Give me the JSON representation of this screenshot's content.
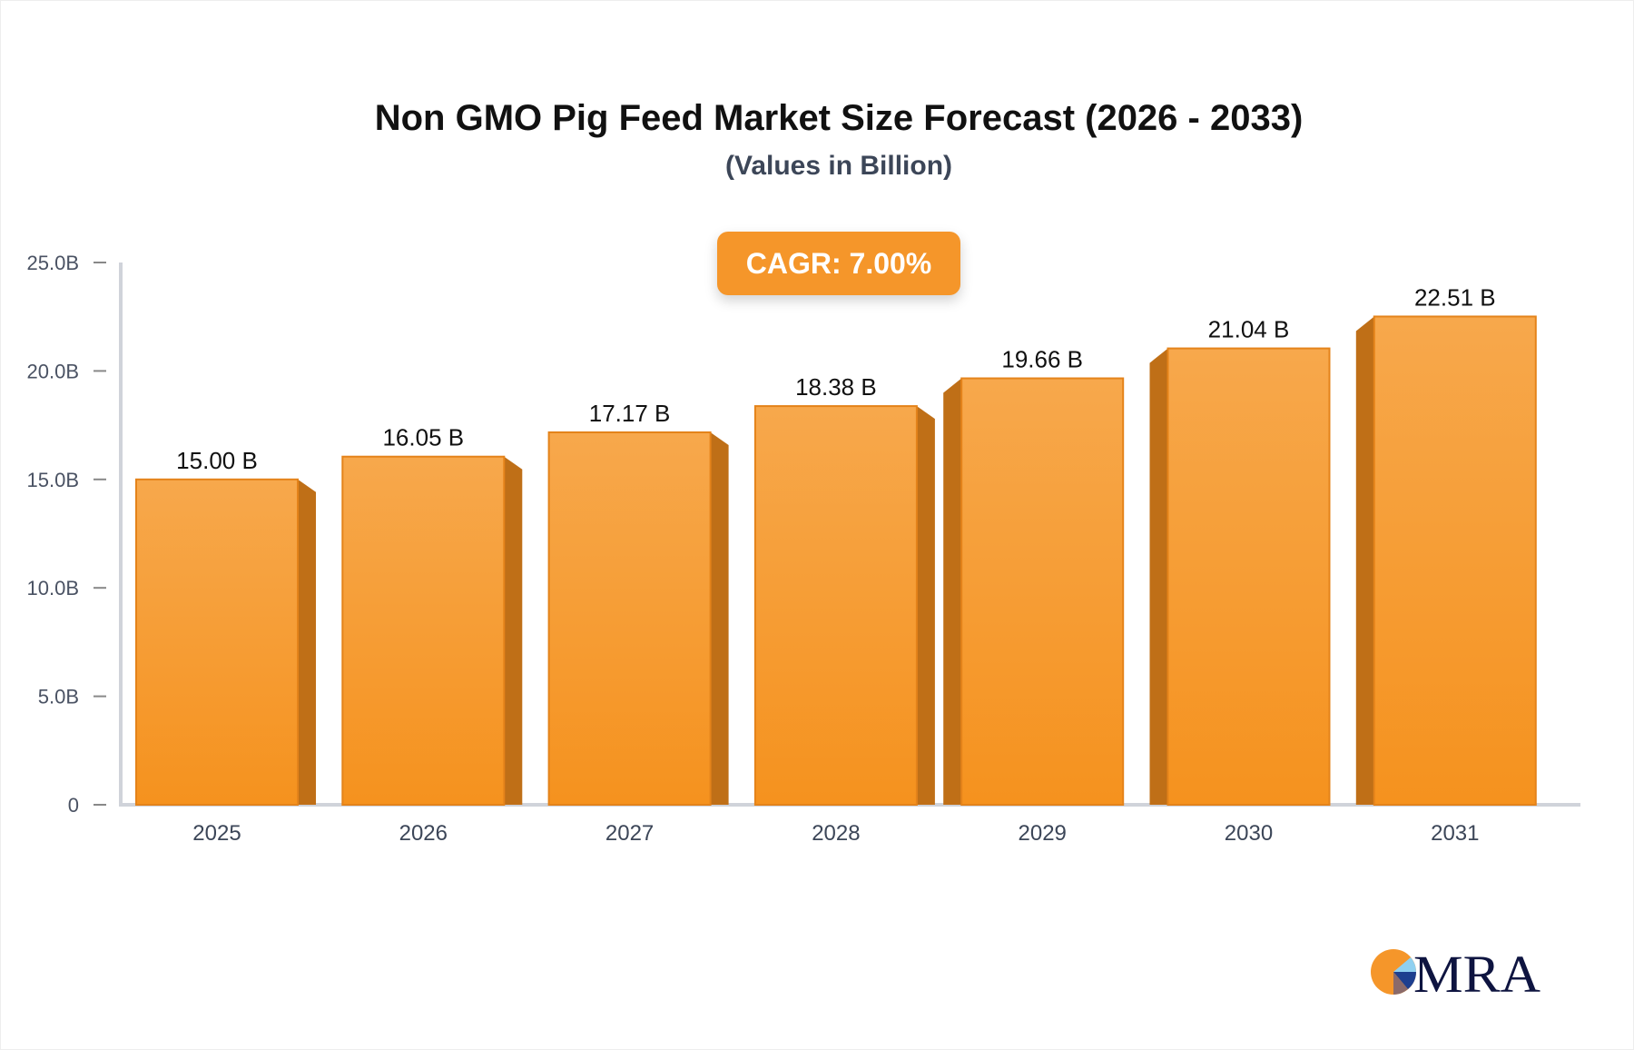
{
  "chart_data": {
    "type": "bar",
    "title": "Non GMO Pig Feed Market Size Forecast (2026 - 2033)",
    "subtitle": "(Values in Billion)",
    "annotation": "CAGR: 7.00%",
    "categories": [
      "2025",
      "2026",
      "2027",
      "2028",
      "2029",
      "2030",
      "2031"
    ],
    "values": [
      15.0,
      16.05,
      17.17,
      18.38,
      19.66,
      21.04,
      22.51
    ],
    "data_labels": [
      "15.00 B",
      "16.05 B",
      "17.17 B",
      "18.38 B",
      "19.66 B",
      "21.04 B",
      "22.51 B"
    ],
    "ylim": [
      0,
      25
    ],
    "yticks": [
      0,
      5,
      10,
      15,
      20,
      25
    ],
    "ytick_labels": [
      "0",
      "5.0B",
      "10.0B",
      "15.0B",
      "20.0B",
      "25.0B"
    ],
    "xlabel": "",
    "ylabel": "",
    "grid": false,
    "colors": {
      "bar_top": "#f7a84c",
      "bar_bottom": "#f5921e",
      "bar_side": "#bf6f17",
      "axis": "#d0d3da"
    }
  },
  "logo": {
    "text": "MRA"
  }
}
